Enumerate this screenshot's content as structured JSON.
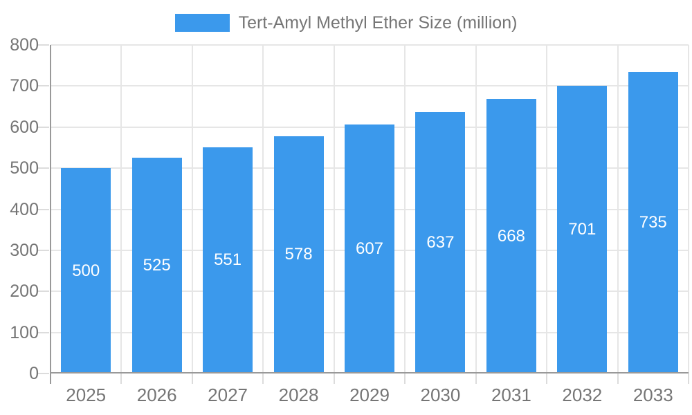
{
  "legend": {
    "label": "Tert-Amyl Methyl Ether Size (million)"
  },
  "colors": {
    "bar": "#3b99ec",
    "bar_label": "#ffffff",
    "grid": "#e6e6e6",
    "tick": "#dcdcdc",
    "axis": "#999999",
    "text": "#757575",
    "background": "#ffffff"
  },
  "chart_data": {
    "type": "bar",
    "title": "Tert-Amyl Methyl Ether Size (million)",
    "categories": [
      "2025",
      "2026",
      "2027",
      "2028",
      "2029",
      "2030",
      "2031",
      "2032",
      "2033"
    ],
    "values": [
      500,
      525,
      551,
      578,
      607,
      637,
      668,
      701,
      735
    ],
    "xlabel": "",
    "ylabel": "",
    "ylim": [
      0,
      800
    ],
    "yticks": [
      0,
      100,
      200,
      300,
      400,
      500,
      600,
      700,
      800
    ],
    "grid": true,
    "legend_position": "top",
    "bar_label_position": "center"
  }
}
